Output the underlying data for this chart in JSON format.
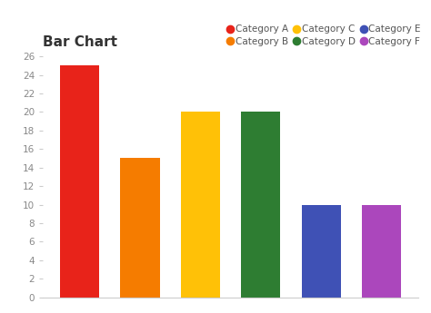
{
  "title": "Bar Chart",
  "categories": [
    "Category A",
    "Category B",
    "Category C",
    "Category D",
    "Category E",
    "Category F"
  ],
  "values": [
    25,
    15,
    20,
    20,
    10,
    10
  ],
  "bar_colors": [
    "#e8231a",
    "#f57c00",
    "#ffc107",
    "#2e7d32",
    "#3f51b5",
    "#ab47bc"
  ],
  "legend_colors": [
    "#e8231a",
    "#f57c00",
    "#ffc107",
    "#2e7d32",
    "#3f51b5",
    "#ab47bc"
  ],
  "ylim": [
    0,
    26
  ],
  "yticks": [
    0,
    2,
    4,
    6,
    8,
    10,
    12,
    14,
    16,
    18,
    20,
    22,
    24,
    26
  ],
  "background_color": "#ffffff",
  "title_fontsize": 11,
  "legend_fontsize": 7.5,
  "tick_fontsize": 7.5,
  "bar_width": 0.65
}
